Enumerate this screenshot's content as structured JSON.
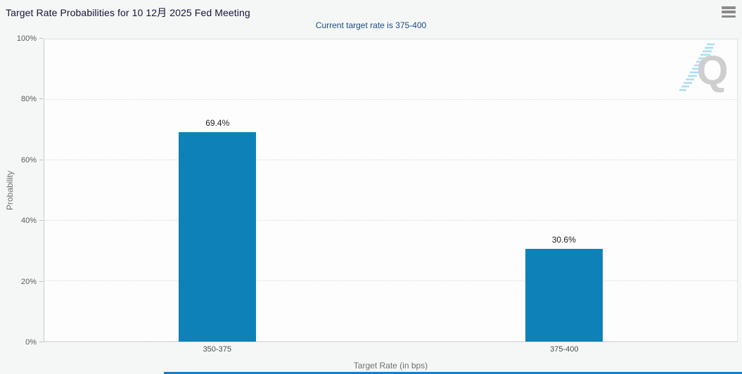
{
  "header": {
    "title": "Target Rate Probabilities for 10 12月 2025 Fed Meeting",
    "subtitle": "Current target rate is 375-400"
  },
  "watermark": {
    "letter": "Q"
  },
  "colors": {
    "bar_blue": "#0e82b8",
    "subtitle_blue": "#1c4e80",
    "bottom_accent_blue": "#1e7cc0",
    "page_background": "#f5f6f6",
    "plot_background": "#fdfdfd"
  },
  "chart_data": {
    "type": "bar",
    "title": "Target Rate Probabilities for 10 12月 2025 Fed Meeting",
    "subtitle": "Current target rate is 375-400",
    "categories": [
      "350-375",
      "375-400"
    ],
    "values": [
      69.4,
      30.6
    ],
    "value_labels": [
      "69.4%",
      "30.6%"
    ],
    "xlabel": "Target Rate (in bps)",
    "ylabel": "Probability",
    "ylim": [
      0,
      100
    ],
    "ytick_labels": [
      "0%",
      "20%",
      "40%",
      "60%",
      "80%",
      "100%"
    ],
    "grid": "horizontal-dotted",
    "legend": "none"
  }
}
